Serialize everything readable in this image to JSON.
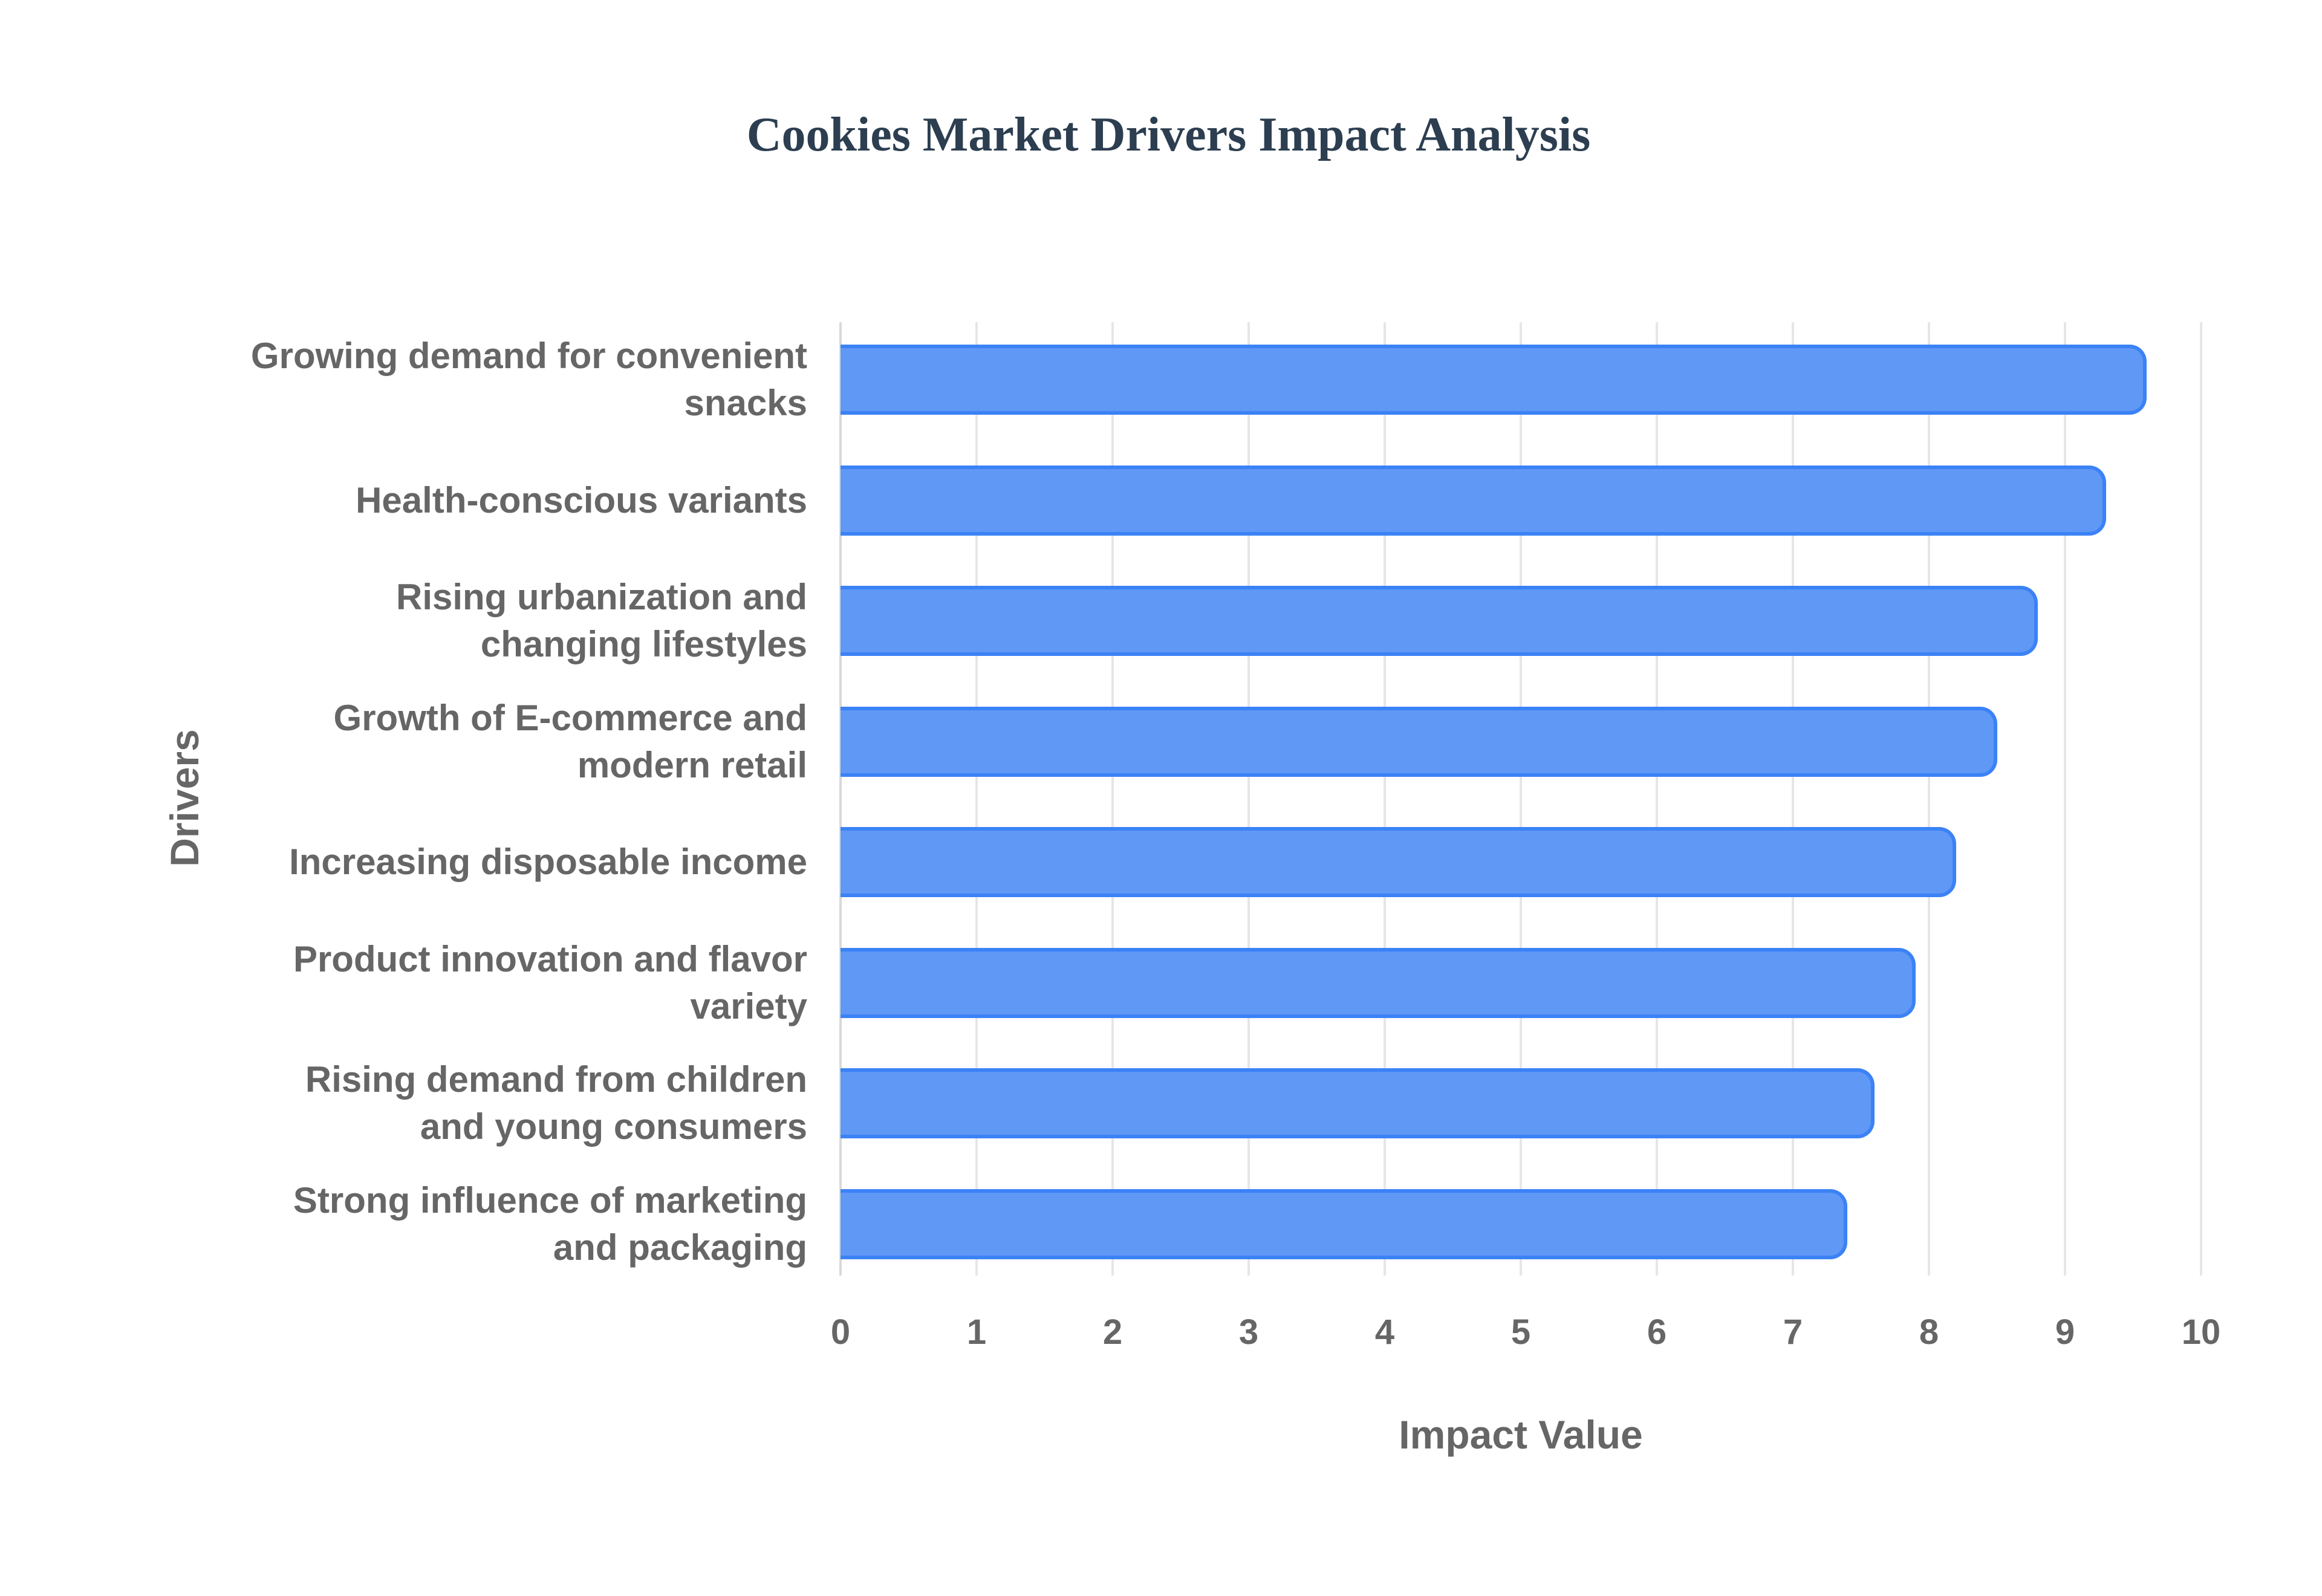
{
  "chart_data": {
    "type": "bar",
    "orientation": "horizontal",
    "title": "Cookies Market Drivers Impact Analysis",
    "xlabel": "Impact Value",
    "ylabel": "Drivers",
    "xlim": [
      0,
      10
    ],
    "x_ticks": [
      "0",
      "1",
      "2",
      "3",
      "4",
      "5",
      "6",
      "7",
      "8",
      "9",
      "10"
    ],
    "grid": true,
    "legend": "none",
    "categories": [
      "Growing demand for convenient snacks",
      "Health-conscious variants",
      "Rising urbanization and changing lifestyles",
      "Growth of E-commerce and modern retail",
      "Increasing disposable income",
      "Product innovation and flavor variety",
      "Rising demand from children and young consumers",
      "Strong influence of marketing and packaging"
    ],
    "category_lines": [
      [
        "Growing demand for convenient",
        "snacks"
      ],
      [
        "Health-conscious variants"
      ],
      [
        "Rising urbanization and",
        "changing lifestyles"
      ],
      [
        "Growth of E-commerce and",
        "modern retail"
      ],
      [
        "Increasing disposable income"
      ],
      [
        "Product innovation and flavor",
        "variety"
      ],
      [
        "Rising demand from children",
        "and young consumers"
      ],
      [
        "Strong influence of marketing",
        "and packaging"
      ]
    ],
    "values": [
      9.6,
      9.3,
      8.8,
      8.5,
      8.2,
      7.9,
      7.6,
      7.4
    ],
    "colors": {
      "bar_fill": "#6098f5",
      "bar_border": "#3b82f6",
      "title": "#2c3e50",
      "text": "#666666",
      "grid": "#e6e6e6"
    }
  }
}
